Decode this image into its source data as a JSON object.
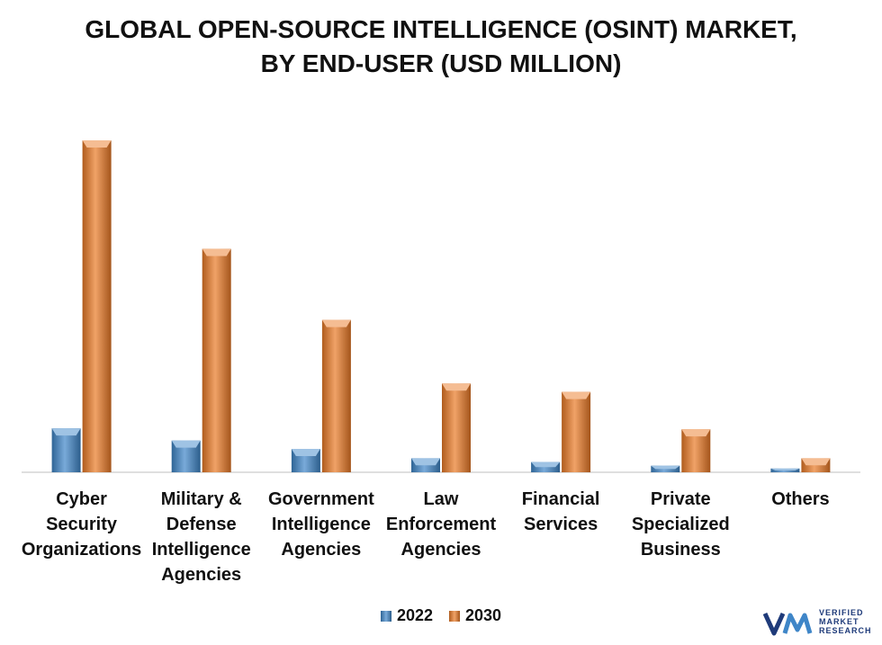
{
  "chart_data": {
    "type": "bar",
    "title_lines": [
      "GLOBAL OPEN-SOURCE INTELLIGENCE (OSINT) MARKET,",
      "BY END-USER (USD MILLION)"
    ],
    "categories": [
      [
        "Cyber",
        "Security",
        "Organizations"
      ],
      [
        "Military &",
        "Defense",
        "Intelligence",
        "Agencies"
      ],
      [
        "Government",
        "Intelligence",
        "Agencies"
      ],
      [
        "Law",
        "Enforcement",
        "Agencies"
      ],
      [
        "Financial",
        "Services"
      ],
      [
        "Private",
        "Specialized",
        "Business"
      ],
      [
        "Others"
      ]
    ],
    "series": [
      {
        "name": "2022",
        "color": "#3f86c8",
        "values": [
          47,
          34,
          25,
          15,
          11,
          7,
          4
        ]
      },
      {
        "name": "2030",
        "color": "#ea7a26",
        "values": [
          355,
          239,
          163,
          95,
          86,
          46,
          15
        ]
      }
    ],
    "ylim": [
      0,
      380
    ],
    "grid": false,
    "legend_position": "bottom-center"
  },
  "logo": {
    "lines": [
      "VERIFIED",
      "MARKET",
      "RESEARCH"
    ],
    "icon": "vmr-logo-icon",
    "color": "#1f3b7a"
  }
}
